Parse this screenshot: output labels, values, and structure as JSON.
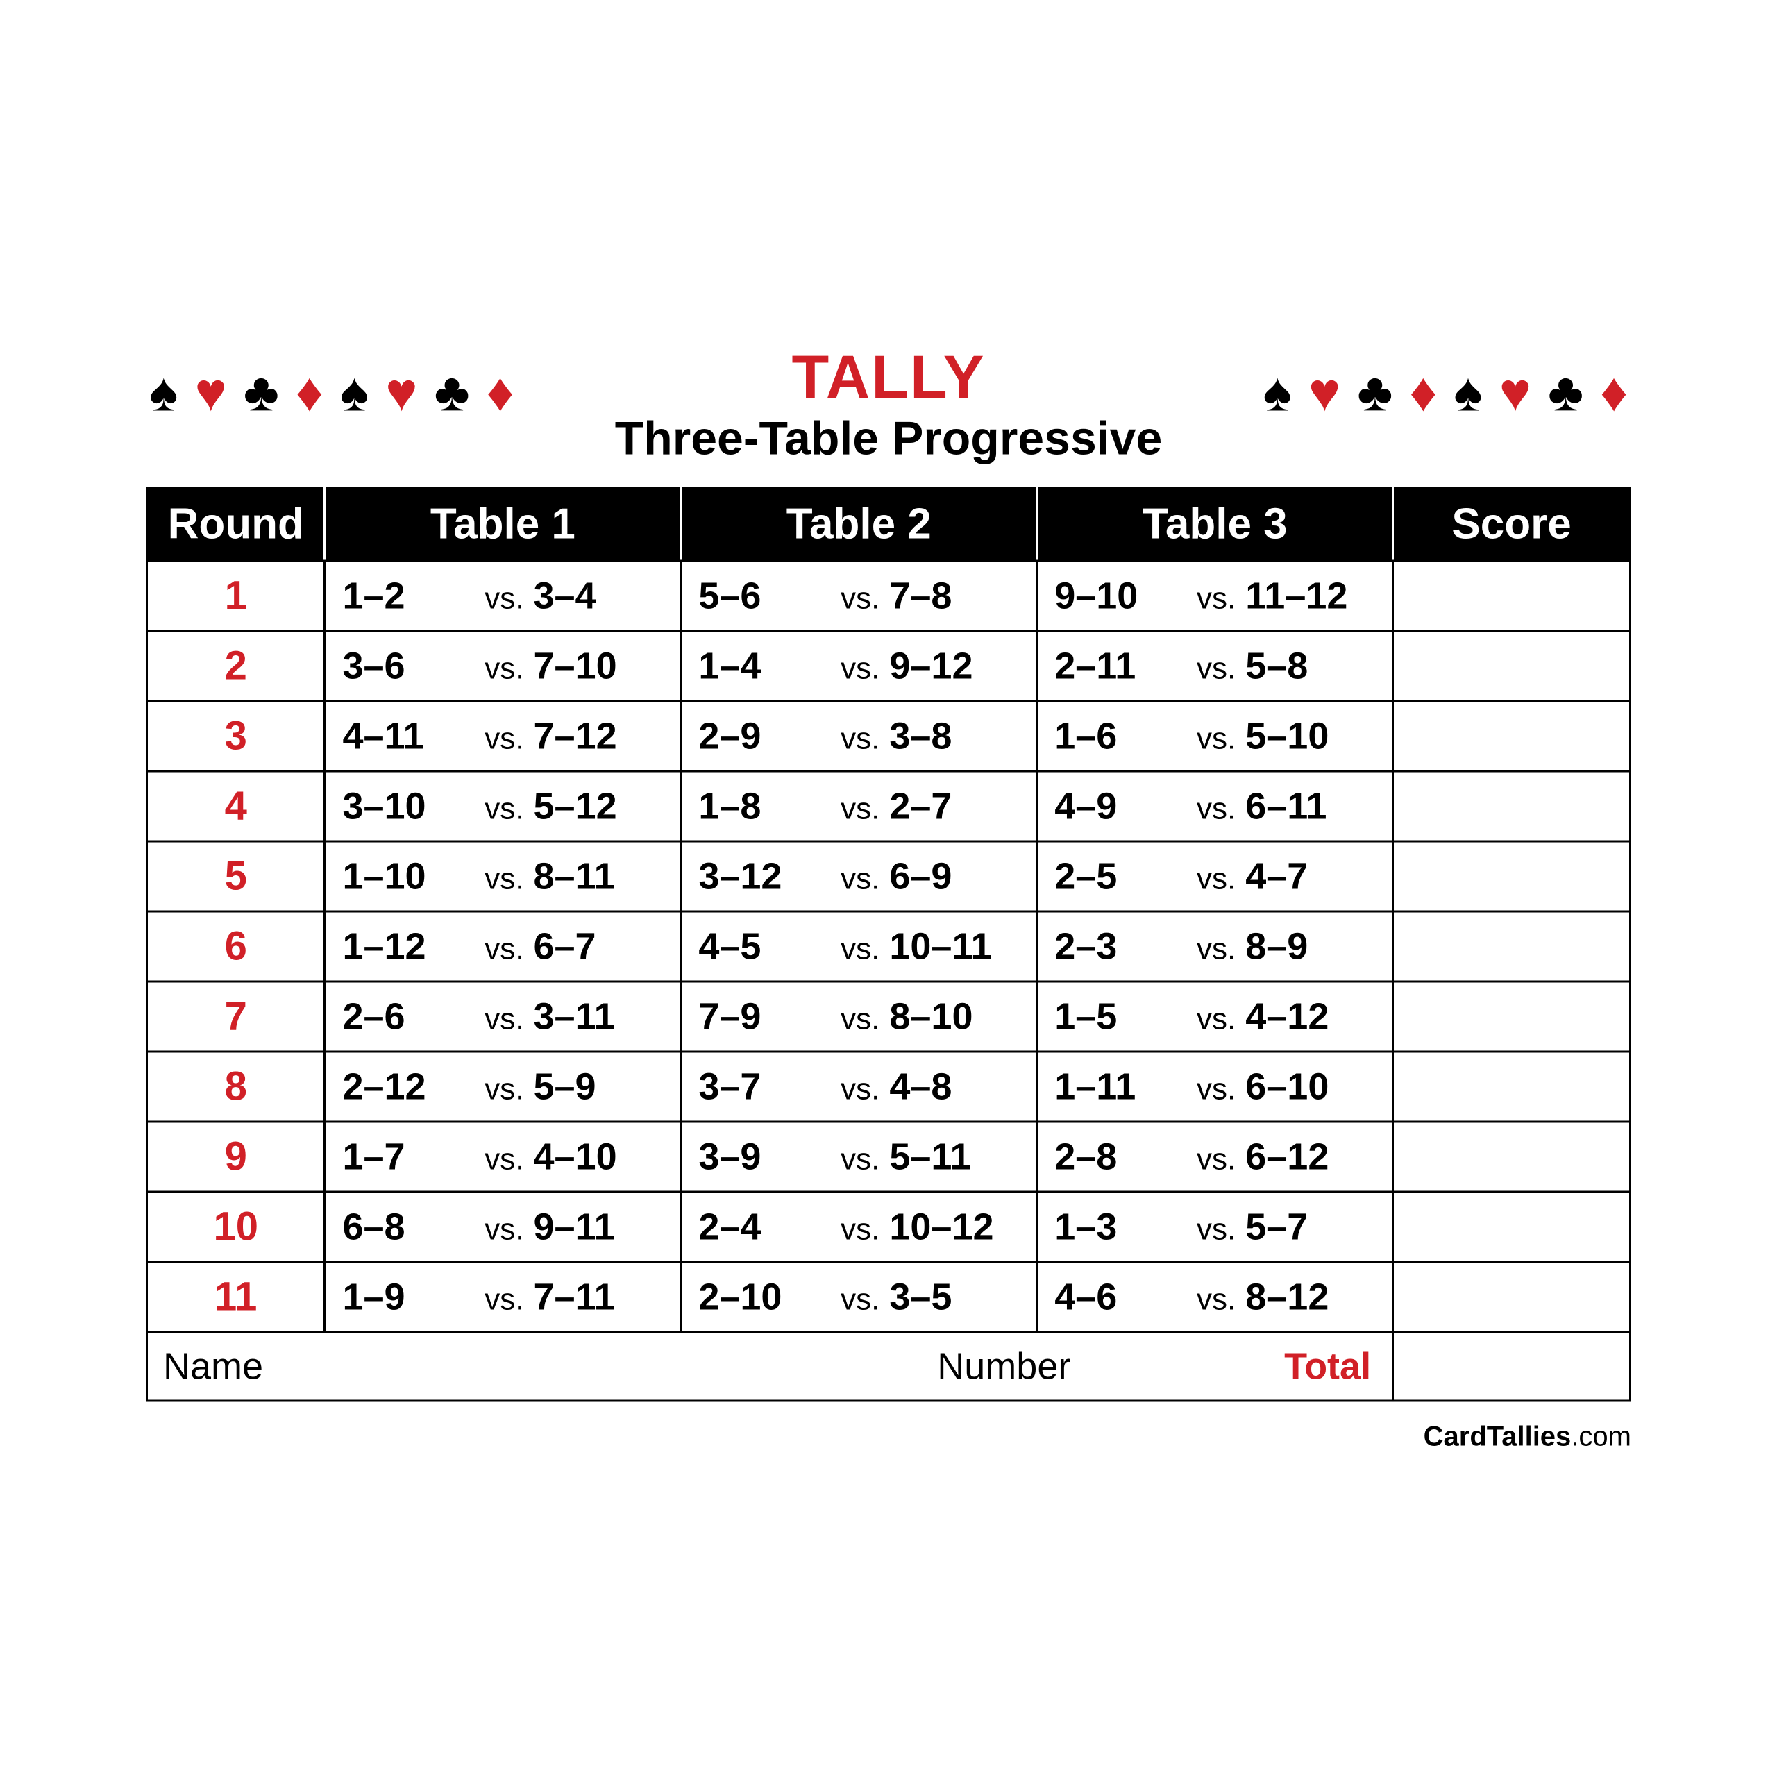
{
  "colors": {
    "red": "#d12027",
    "black": "#000000",
    "white": "#ffffff"
  },
  "header": {
    "title": "TALLY",
    "subtitle": "Three-Table Progressive",
    "suits_left": [
      {
        "g": "♠",
        "c": "black"
      },
      {
        "g": "♥",
        "c": "red"
      },
      {
        "g": "♣",
        "c": "black"
      },
      {
        "g": "♦",
        "c": "red"
      },
      {
        "g": "♠",
        "c": "black"
      },
      {
        "g": "♥",
        "c": "red"
      },
      {
        "g": "♣",
        "c": "black"
      },
      {
        "g": "♦",
        "c": "red"
      }
    ],
    "suits_right": [
      {
        "g": "♠",
        "c": "black"
      },
      {
        "g": "♥",
        "c": "red"
      },
      {
        "g": "♣",
        "c": "black"
      },
      {
        "g": "♦",
        "c": "red"
      },
      {
        "g": "♠",
        "c": "black"
      },
      {
        "g": "♥",
        "c": "red"
      },
      {
        "g": "♣",
        "c": "black"
      },
      {
        "g": "♦",
        "c": "red"
      }
    ]
  },
  "table": {
    "columns": [
      "Round",
      "Table 1",
      "Table 2",
      "Table 3",
      "Score"
    ],
    "vs_label": "vs.",
    "rows": [
      {
        "round": "1",
        "t1": {
          "a": "1–2",
          "b": "3–4"
        },
        "t2": {
          "a": "5–6",
          "b": "7–8"
        },
        "t3": {
          "a": "9–10",
          "b": "11–12"
        },
        "score": ""
      },
      {
        "round": "2",
        "t1": {
          "a": "3–6",
          "b": "7–10"
        },
        "t2": {
          "a": "1–4",
          "b": "9–12"
        },
        "t3": {
          "a": "2–11",
          "b": "5–8"
        },
        "score": ""
      },
      {
        "round": "3",
        "t1": {
          "a": "4–11",
          "b": "7–12"
        },
        "t2": {
          "a": "2–9",
          "b": "3–8"
        },
        "t3": {
          "a": "1–6",
          "b": "5–10"
        },
        "score": ""
      },
      {
        "round": "4",
        "t1": {
          "a": "3–10",
          "b": "5–12"
        },
        "t2": {
          "a": "1–8",
          "b": "2–7"
        },
        "t3": {
          "a": "4–9",
          "b": "6–11"
        },
        "score": ""
      },
      {
        "round": "5",
        "t1": {
          "a": "1–10",
          "b": "8–11"
        },
        "t2": {
          "a": "3–12",
          "b": "6–9"
        },
        "t3": {
          "a": "2–5",
          "b": "4–7"
        },
        "score": ""
      },
      {
        "round": "6",
        "t1": {
          "a": "1–12",
          "b": "6–7"
        },
        "t2": {
          "a": "4–5",
          "b": "10–11"
        },
        "t3": {
          "a": "2–3",
          "b": "8–9"
        },
        "score": ""
      },
      {
        "round": "7",
        "t1": {
          "a": "2–6",
          "b": "3–11"
        },
        "t2": {
          "a": "7–9",
          "b": "8–10"
        },
        "t3": {
          "a": "1–5",
          "b": "4–12"
        },
        "score": ""
      },
      {
        "round": "8",
        "t1": {
          "a": "2–12",
          "b": "5–9"
        },
        "t2": {
          "a": "3–7",
          "b": "4–8"
        },
        "t3": {
          "a": "1–11",
          "b": "6–10"
        },
        "score": ""
      },
      {
        "round": "9",
        "t1": {
          "a": "1–7",
          "b": "4–10"
        },
        "t2": {
          "a": "3–9",
          "b": "5–11"
        },
        "t3": {
          "a": "2–8",
          "b": "6–12"
        },
        "score": ""
      },
      {
        "round": "10",
        "t1": {
          "a": "6–8",
          "b": "9–11"
        },
        "t2": {
          "a": "2–4",
          "b": "10–12"
        },
        "t3": {
          "a": "1–3",
          "b": "5–7"
        },
        "score": ""
      },
      {
        "round": "11",
        "t1": {
          "a": "1–9",
          "b": "7–11"
        },
        "t2": {
          "a": "2–10",
          "b": "3–5"
        },
        "t3": {
          "a": "4–6",
          "b": "8–12"
        },
        "score": ""
      }
    ],
    "footer": {
      "name_label": "Name",
      "number_label": "Number",
      "total_label": "Total"
    }
  },
  "credit": {
    "bold": "CardTallies",
    "rest": ".com"
  }
}
